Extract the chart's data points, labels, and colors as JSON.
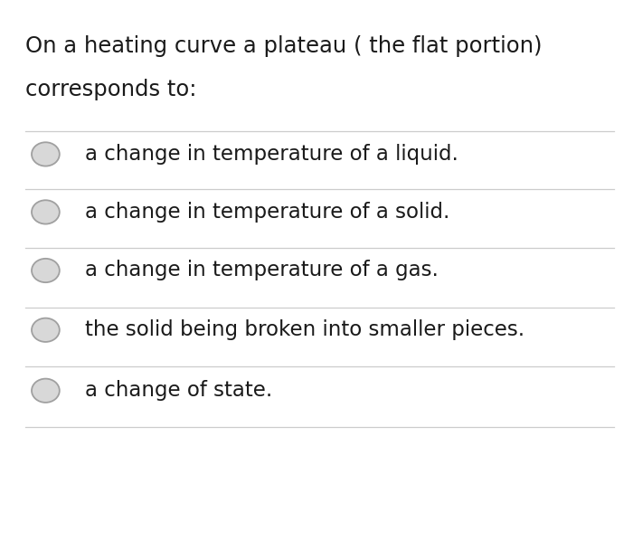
{
  "background_color": "#ffffff",
  "question_text_line1": "On a heating curve a plateau ( the flat portion)",
  "question_text_line2": "corresponds to:",
  "options": [
    "a change in temperature of a liquid.",
    "a change in temperature of a solid.",
    "a change in temperature of a gas.",
    "the solid being broken into smaller pieces.",
    "a change of state."
  ],
  "question_fontsize": 17.5,
  "option_fontsize": 16.5,
  "text_color": "#1a1a1a",
  "circle_facecolor": "#d8d8d8",
  "circle_edgecolor": "#a0a0a0",
  "line_color": "#cccccc",
  "fig_width": 7.0,
  "fig_height": 5.98
}
